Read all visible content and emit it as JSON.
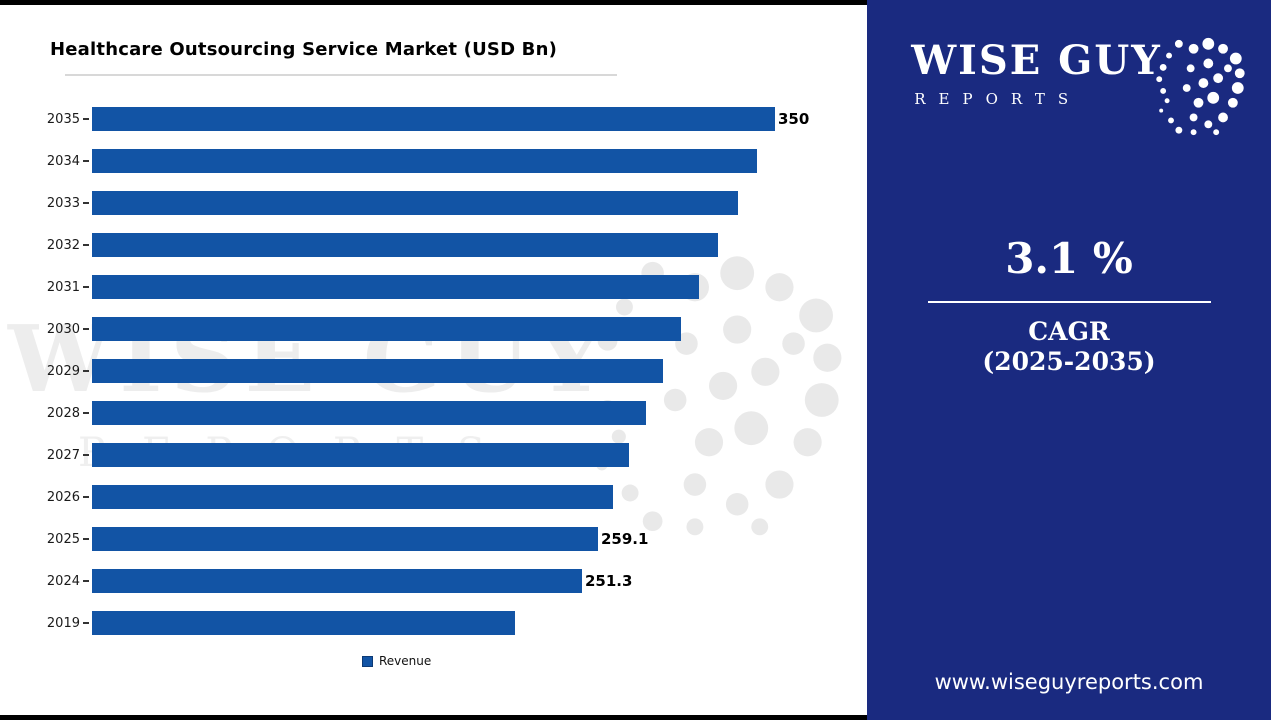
{
  "title": "Healthcare Outsourcing Service Market (USD Bn)",
  "legend": {
    "label": "Revenue"
  },
  "watermark": {
    "line1": "WISE GUY",
    "line2": "REPORTS"
  },
  "chart_data": {
    "type": "bar",
    "orientation": "horizontal",
    "title": "Healthcare Outsourcing Service Market (USD Bn)",
    "categories": [
      "2035",
      "2034",
      "2033",
      "2032",
      "2031",
      "2030",
      "2029",
      "2028",
      "2027",
      "2026",
      "2025",
      "2024",
      "2019"
    ],
    "values": [
      350,
      341,
      330.8,
      320.8,
      311.2,
      301.8,
      292.7,
      283.9,
      275.4,
      267.1,
      259.1,
      251.3,
      217
    ],
    "value_labels": [
      "350",
      "",
      "",
      "",
      "",
      "",
      "",
      "",
      "",
      "",
      "259.1",
      "251.3",
      ""
    ],
    "xlim": [
      0,
      350
    ],
    "xlabel": "",
    "ylabel": "",
    "grid": false,
    "legend_entries": [
      "Revenue"
    ],
    "legend_position": "bottom",
    "bar_color": "#1254A5"
  },
  "side_panel": {
    "logo_line1": "WISE GUY",
    "logo_line2": "REPORTS",
    "cagr_value": "3.1 %",
    "cagr_label_line1": "CAGR",
    "cagr_label_line2": "(2025-2035)",
    "website": "www.wiseguyreports.com",
    "panel_color": "#1A2A80"
  }
}
